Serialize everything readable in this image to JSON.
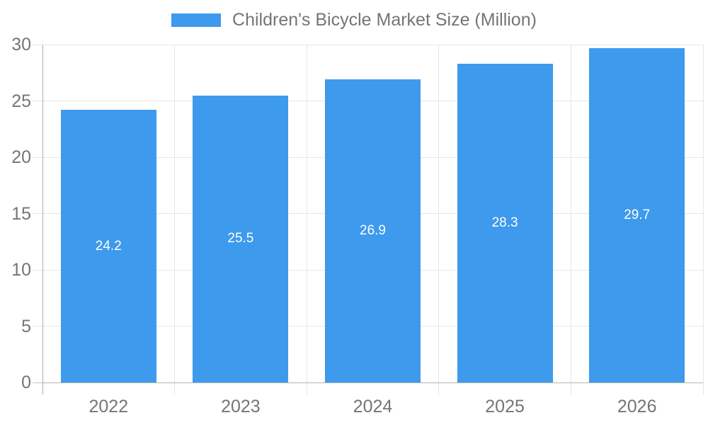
{
  "chart_data": {
    "type": "bar",
    "title": "Children's Bicycle Market Size (Million)",
    "legend": [
      "Children's Bicycle Market Size (Million)"
    ],
    "legend_position": "top-center",
    "categories": [
      "2022",
      "2023",
      "2024",
      "2025",
      "2026"
    ],
    "values": [
      24.2,
      25.5,
      26.9,
      28.3,
      29.7
    ],
    "value_labels": [
      "24.2",
      "25.5",
      "26.9",
      "28.3",
      "29.7"
    ],
    "value_label_position": "inside-middle",
    "xlabel": "",
    "ylabel": "",
    "ylim": [
      0,
      30
    ],
    "ytick_step": 5,
    "yticks": [
      "0",
      "5",
      "10",
      "15",
      "20",
      "25",
      "30"
    ],
    "grid": true
  },
  "colors": {
    "bar": "#3d9aec",
    "bar_label_text": "#ffffff",
    "axis_label_text": "#757575",
    "legend_text": "#757575",
    "axis_line": "#adadad",
    "tick_mark": "#c9c9c9",
    "gridline": "#e6e6e6",
    "background": "#ffffff"
  }
}
